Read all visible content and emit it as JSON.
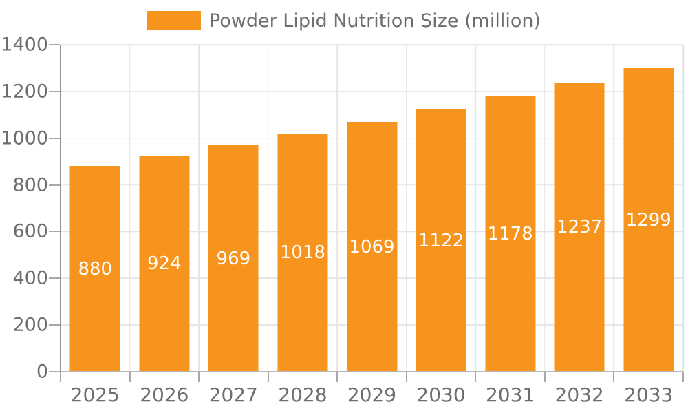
{
  "legend": {
    "label": "Powder Lipid Nutrition Size (million)"
  },
  "colors": {
    "bar": "#F7941E",
    "bar_label": "#FFFFFF",
    "axis_text": "#6E6E6E",
    "grid": "#E4E4E4",
    "y_axis_line": "#929292",
    "x_axis_line": "#B6B6B6",
    "tick": "#A8A8A8",
    "background": "#FFFFFF"
  },
  "chart_data": {
    "type": "bar",
    "title": "Powder Lipid Nutrition Size (million)",
    "series_name": "Powder Lipid Nutrition Size (million)",
    "categories": [
      "2025",
      "2026",
      "2027",
      "2028",
      "2029",
      "2030",
      "2031",
      "2032",
      "2033"
    ],
    "values": [
      880,
      924,
      969,
      1018,
      1069,
      1122,
      1178,
      1237,
      1299
    ],
    "xlabel": "",
    "ylabel": "",
    "ylim": [
      0,
      1400
    ],
    "yticks": [
      0,
      200,
      400,
      600,
      800,
      1000,
      1200,
      1400
    ],
    "grid": true,
    "vertical_gridlines": true,
    "legend_position": "top-center",
    "value_labels": "inside-center-white"
  }
}
